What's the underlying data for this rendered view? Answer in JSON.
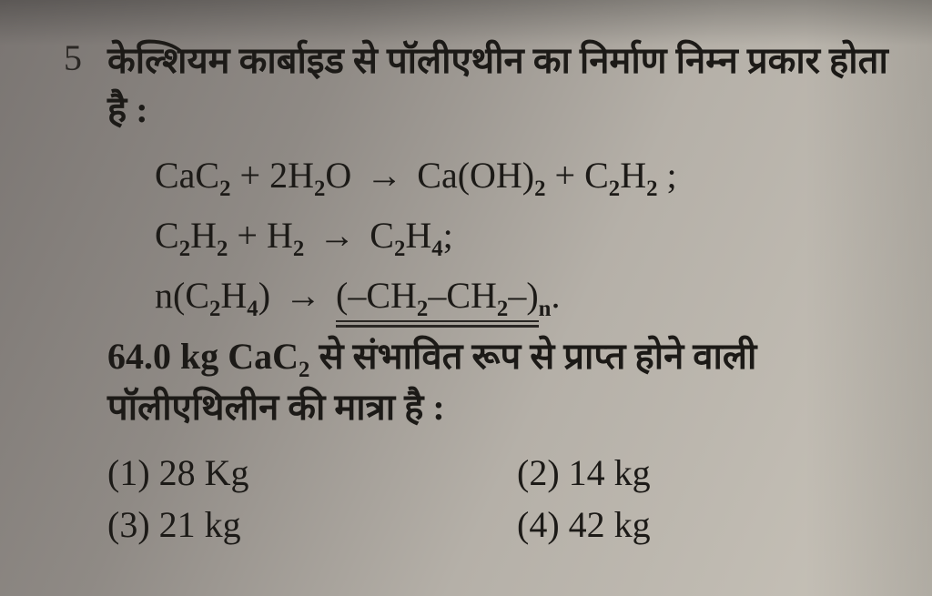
{
  "question": {
    "number": "5",
    "stem": "केल्शियम कार्बाइड से पॉलीएथीन का निर्माण निम्न प्रकार होता है :",
    "equations": {
      "line1_lhs1": "CaC",
      "line1_lhs1_sub": "2",
      "line1_plus1": " + 2H",
      "line1_lhs2_sub": "2",
      "line1_lhs2_tail": "O",
      "line1_rhs1": "Ca(OH)",
      "line1_rhs1_sub": "2",
      "line1_plus2": " + C",
      "line1_rhs2_sub1": "2",
      "line1_rhs2_mid": "H",
      "line1_rhs2_sub2": "2",
      "line1_end": " ;",
      "line2_lhs1": "C",
      "line2_lhs1_sub1": "2",
      "line2_lhs1_mid": "H",
      "line2_lhs1_sub2": "2",
      "line2_plus1": " + H",
      "line2_lhs2_sub": "2",
      "line2_rhs": "C",
      "line2_rhs_sub1": "2",
      "line2_rhs_mid": "H",
      "line2_rhs_sub2": "4",
      "line2_end": ";",
      "line3_lhs_pre": "n(C",
      "line3_lhs_sub1": "2",
      "line3_lhs_mid": "H",
      "line3_lhs_sub2": "4",
      "line3_lhs_post": ")",
      "line3_rhs_pre": "(–CH",
      "line3_rhs_sub1": "2",
      "line3_rhs_mid": "–CH",
      "line3_rhs_sub2": "2",
      "line3_rhs_post": "–)",
      "line3_rhs_nsub": "n",
      "line3_end": "."
    },
    "followup_pre": "64.0 kg CaC",
    "followup_sub": "2",
    "followup_post": " से संभावित रूप से प्राप्त होने वाली पॉलीएथिलीन की मात्रा है :",
    "options": [
      "(1) 28 Kg",
      "(2) 14 kg",
      "(3) 21 kg",
      "(4) 42 kg"
    ]
  },
  "arrow": "→"
}
